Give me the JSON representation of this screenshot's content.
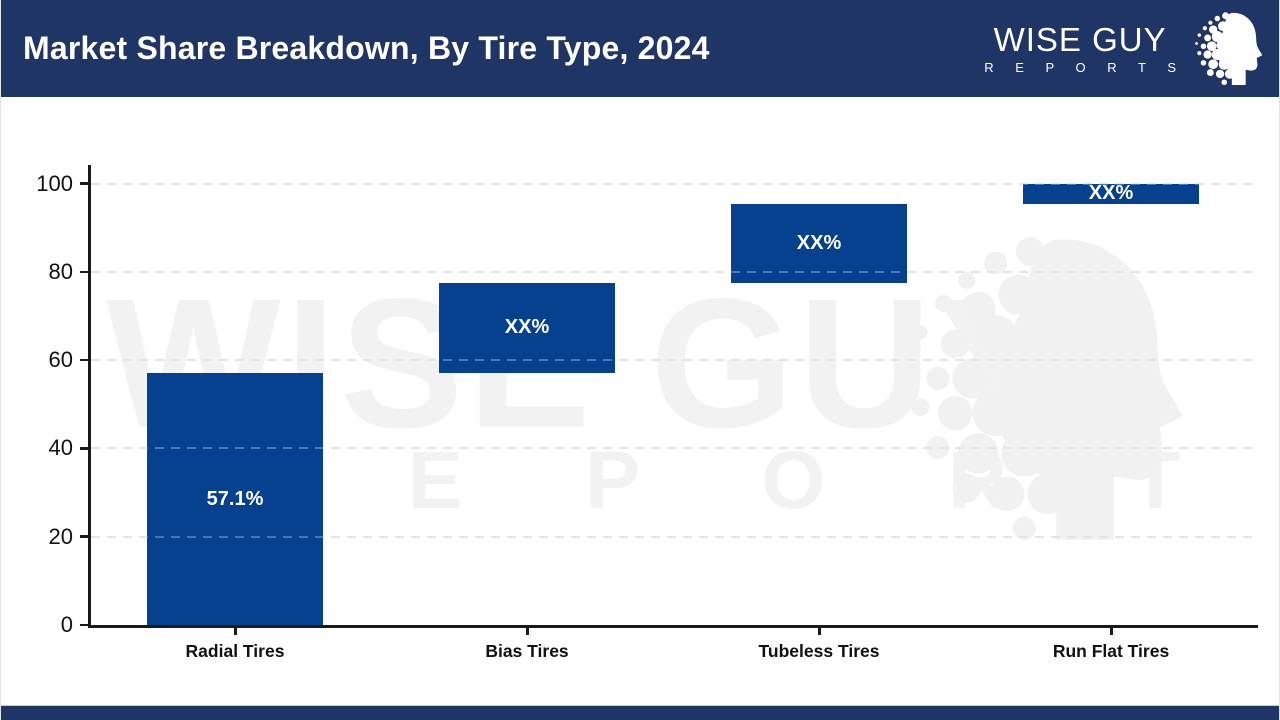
{
  "header": {
    "title": "Market Share Breakdown, By Tire Type, 2024",
    "logo": {
      "line1": "WISE GUY",
      "line2": "R E P O R T S"
    }
  },
  "watermark": {
    "line1": "WISE GUY",
    "line2": "R E P O R T S"
  },
  "chart_data": {
    "type": "bar",
    "subtype": "waterfall",
    "title": "Market Share Breakdown, By Tire Type, 2024",
    "categories": [
      "Radial Tires",
      "Bias Tires",
      "Tubeless Tires",
      "Run Flat Tires"
    ],
    "series": [
      {
        "name": "Market share (%)",
        "segments": [
          {
            "category": "Radial Tires",
            "start": 0,
            "end": 57.1,
            "label": "57.1%"
          },
          {
            "category": "Bias Tires",
            "start": 57.1,
            "end": 77.6,
            "label": "XX%"
          },
          {
            "category": "Tubeless Tires",
            "start": 77.6,
            "end": 95.5,
            "label": "XX%"
          },
          {
            "category": "Run Flat Tires",
            "start": 95.5,
            "end": 100,
            "label": "XX%"
          }
        ]
      }
    ],
    "xlabel": "",
    "ylabel": "",
    "ylim": [
      0,
      104
    ],
    "yticks": [
      0,
      20,
      40,
      60,
      80,
      100
    ],
    "grid": "horizontal dashed",
    "legend": "none"
  },
  "colors": {
    "band_navy": "#1f3565",
    "bar_blue": "#05418f",
    "bar_label": "#ffffff",
    "axis": "#1a1a1a",
    "grid": "#d9d9d9",
    "watermark": "#f2f2f3",
    "title_text": "#ffffff"
  }
}
